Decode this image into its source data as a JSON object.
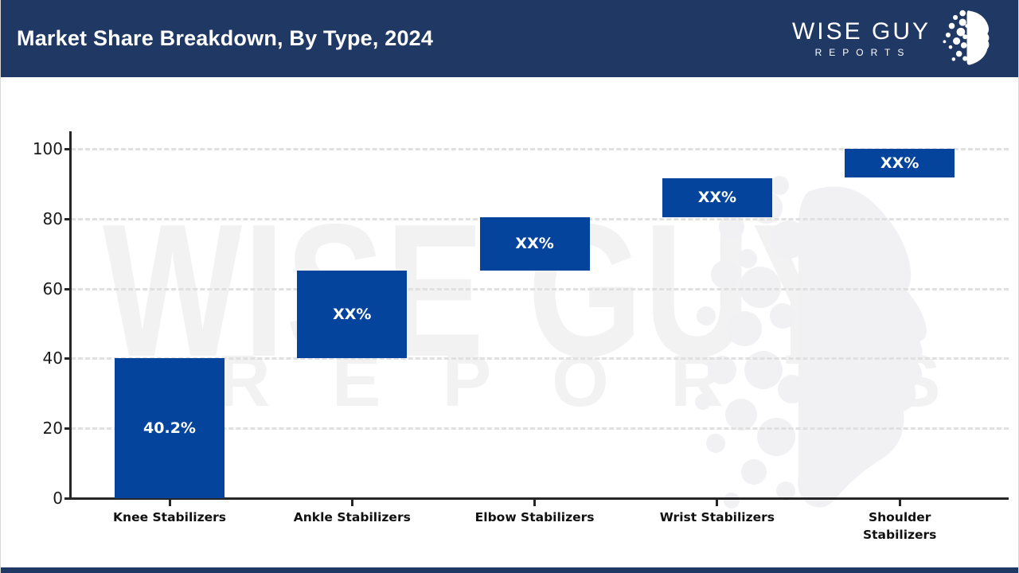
{
  "header": {
    "title": "Market Share Breakdown, By Type, 2024",
    "bg_color": "#1F3864",
    "logo": {
      "line1": "WISE GUY",
      "line2": "REPORTS"
    }
  },
  "watermark": {
    "line1": "WISE GUY",
    "line2": "R E P O R T S"
  },
  "footer": {
    "bg_color": "#1F3864"
  },
  "chart_data": {
    "type": "bar",
    "subtype": "waterfall-floating-bars",
    "title": "Market Share Breakdown, By Type, 2024",
    "xlabel": "",
    "ylabel": "",
    "categories": [
      "Knee Stabilizers",
      "Ankle Stabilizers",
      "Elbow Stabilizers",
      "Wrist Stabilizers",
      "Shoulder\nStabilizers"
    ],
    "series": [
      {
        "name": "Market Share (%)",
        "segments": [
          {
            "category": "Knee Stabilizers",
            "base": 0,
            "top": 40.2,
            "label": "40.2%"
          },
          {
            "category": "Ankle Stabilizers",
            "base": 40.2,
            "top": 65.2,
            "label": "XX%"
          },
          {
            "category": "Elbow Stabilizers",
            "base": 65.2,
            "top": 80.4,
            "label": "XX%"
          },
          {
            "category": "Wrist Stabilizers",
            "base": 80.5,
            "top": 91.5,
            "label": "XX%"
          },
          {
            "category": "Shoulder Stabilizers",
            "base": 91.7,
            "top": 100,
            "label": "XX%"
          }
        ]
      }
    ],
    "yticks": [
      0,
      20,
      40,
      60,
      80,
      100
    ],
    "ylim": [
      0,
      105
    ],
    "grid": "horizontal dashed",
    "bar_color": "#04449C",
    "bar_label_color": "#FFFFFF",
    "axis_color": "#262626",
    "gridline_color": "#E0E0E0"
  }
}
